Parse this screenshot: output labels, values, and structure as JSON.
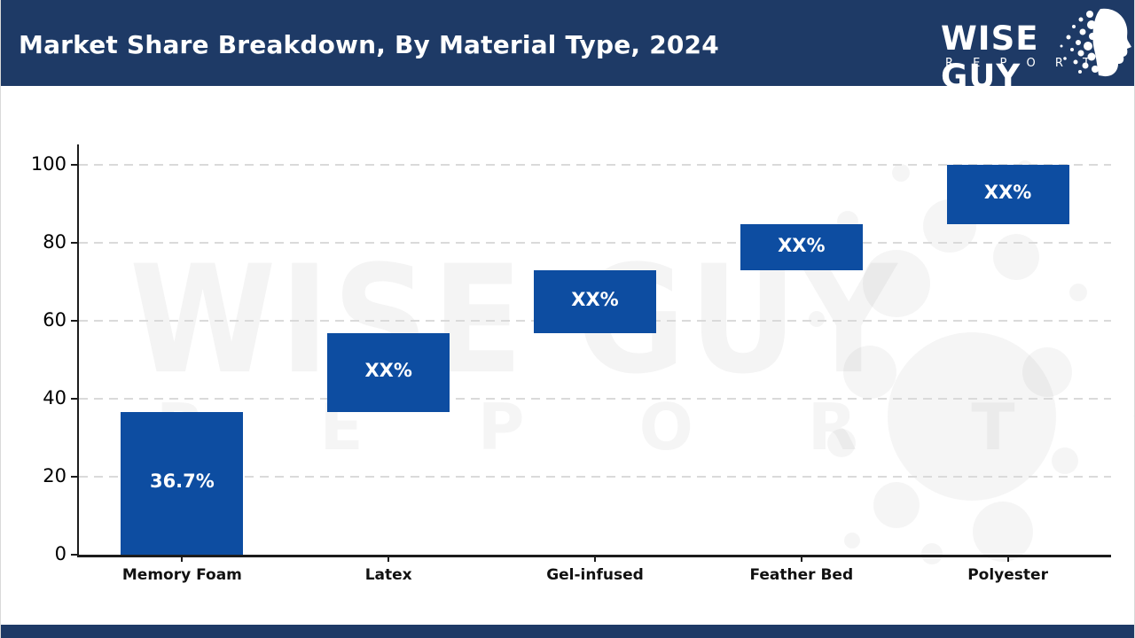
{
  "header": {
    "title": "Market Share Breakdown, By Material Type, 2024",
    "logo": {
      "line1": "WISE GUY",
      "line2": "R E P O R T S"
    }
  },
  "watermark": {
    "line1": "WISE GUY",
    "line2": "R E P O R T S"
  },
  "colors": {
    "header_bg": "#1e3a66",
    "footer_bg": "#1e3a66",
    "bar": "#0d4da1",
    "grid": "#dadada",
    "axis": "#1c1c1c",
    "bar_label": "#ffffff"
  },
  "chart_data": {
    "type": "bar",
    "subtype": "waterfall",
    "title": "Market Share Breakdown, By Material Type, 2024",
    "xlabel": "",
    "ylabel": "",
    "categories": [
      "Memory Foam",
      "Latex",
      "Gel-infused",
      "Feather Bed",
      "Polyester"
    ],
    "segments": [
      {
        "category": "Memory Foam",
        "start": 0,
        "end": 36.7,
        "value": 36.7,
        "label": "36.7%"
      },
      {
        "category": "Latex",
        "start": 36.7,
        "end": 56.9,
        "value": 20.2,
        "label": "XX%"
      },
      {
        "category": "Gel-infused",
        "start": 56.9,
        "end": 73.0,
        "value": 16.1,
        "label": "XX%"
      },
      {
        "category": "Feather Bed",
        "start": 73.0,
        "end": 84.8,
        "value": 11.8,
        "label": "XX%"
      },
      {
        "category": "Polyester",
        "start": 84.8,
        "end": 100.0,
        "value": 15.2,
        "label": "XX%"
      }
    ],
    "yticks": [
      0,
      20,
      40,
      60,
      80,
      100
    ],
    "ylim": [
      0,
      100
    ],
    "grid": true,
    "grid_style": "dashed",
    "legend": "none",
    "bar_color": "#0d4da1"
  }
}
